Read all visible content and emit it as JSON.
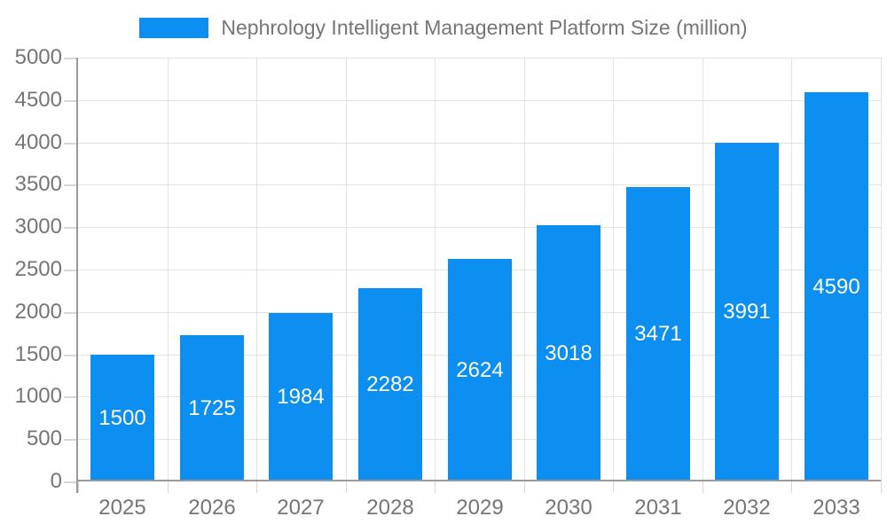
{
  "legend": {
    "label": "Nephrology Intelligent Management Platform Size (million)",
    "swatch_color": "#0d8ff2"
  },
  "chart_data": {
    "type": "bar",
    "title": "Nephrology Intelligent Management Platform Size (million)",
    "categories": [
      "2025",
      "2026",
      "2027",
      "2028",
      "2029",
      "2030",
      "2031",
      "2032",
      "2033"
    ],
    "values": [
      1500,
      1725,
      1984,
      2282,
      2624,
      3018,
      3471,
      3991,
      4590
    ],
    "series_name": "Nephrology Intelligent Management Platform Size (million)",
    "xlabel": "",
    "ylabel": "",
    "ylim": [
      0,
      5000
    ],
    "ytick_step": 500,
    "yticks": [
      0,
      500,
      1000,
      1500,
      2000,
      2500,
      3000,
      3500,
      4000,
      4500,
      5000
    ],
    "grid": true,
    "legend_position": "top-center",
    "value_label_position": "inside-center",
    "colors": {
      "bar": "#0d8ff2",
      "value_label": "#ffffff",
      "axis_text": "#757575",
      "grid_line": "#e3e3e3",
      "tick": "#d6d6d6",
      "axis_line": "#9a9a9a",
      "background": "#ffffff"
    }
  }
}
